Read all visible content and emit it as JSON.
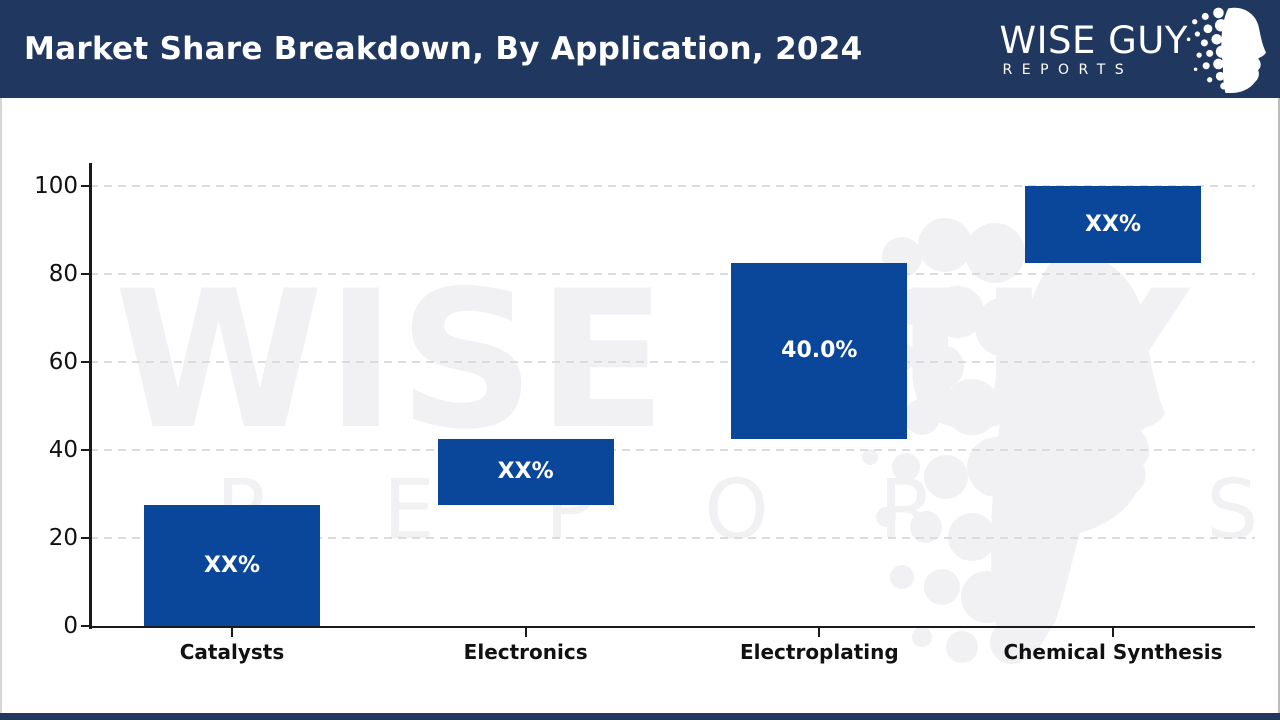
{
  "header": {
    "title": "Market Share Breakdown, By Application, 2024",
    "logo_line1": "WISE GUY",
    "logo_line2": "REPORTS"
  },
  "watermark": {
    "line1": "WISE GUY",
    "line2": "R E P O R T S"
  },
  "chart_data": {
    "type": "bar",
    "subtype": "floating-waterfall",
    "title": "Market Share Breakdown, By Application, 2024",
    "categories": [
      "Catalysts",
      "Electronics",
      "Electroplating",
      "Chemical Synthesis"
    ],
    "segments": [
      {
        "category": "Catalysts",
        "start": 0,
        "end": 27.5,
        "label": "XX%"
      },
      {
        "category": "Electronics",
        "start": 27.5,
        "end": 42.5,
        "label": "XX%"
      },
      {
        "category": "Electroplating",
        "start": 42.5,
        "end": 82.5,
        "label": "40.0%"
      },
      {
        "category": "Chemical Synthesis",
        "start": 82.5,
        "end": 100,
        "label": "XX%"
      }
    ],
    "values_pct": [
      27.5,
      15,
      40,
      17.5
    ],
    "bar_labels": [
      "XX%",
      "XX%",
      "40.0%",
      "XX%"
    ],
    "xlabel": "",
    "ylabel": "",
    "ylim": [
      0,
      100
    ],
    "yticks": [
      0,
      20,
      40,
      60,
      80,
      100
    ],
    "grid": "horizontal-dashed",
    "legend": "none",
    "bar_color": "#0a479b",
    "bar_label_color": "#ffffff"
  },
  "colors": {
    "header_bg": "#203760",
    "footer_bg": "#203760",
    "axis": "#1a1a1a",
    "gridline": "#dcdcdc",
    "watermark": "#f1f1f3",
    "page_bg": "#ffffff"
  }
}
